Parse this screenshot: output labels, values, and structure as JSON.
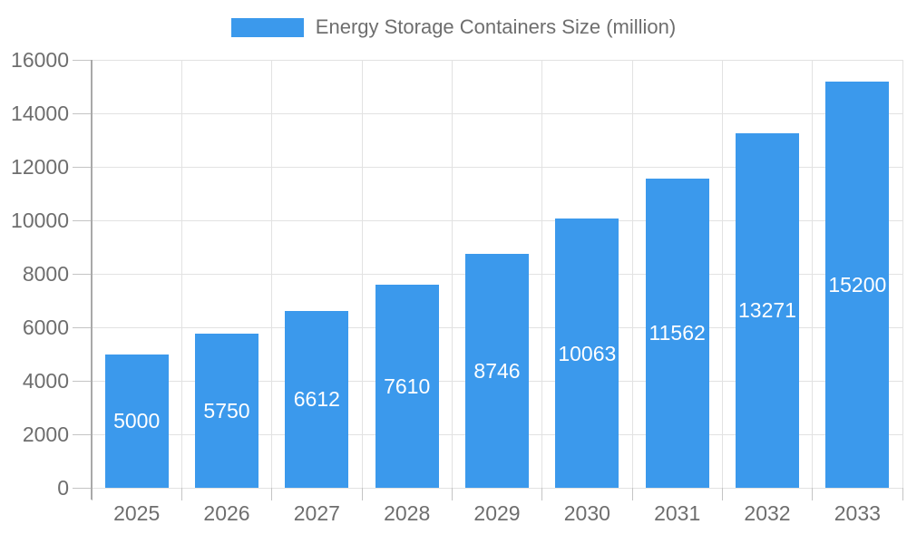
{
  "chart_data": {
    "type": "bar",
    "title": "Energy Storage Containers Size (million)",
    "categories": [
      "2025",
      "2026",
      "2027",
      "2028",
      "2029",
      "2030",
      "2031",
      "2032",
      "2033"
    ],
    "values": [
      5000,
      5750,
      6612,
      7610,
      8746,
      10063,
      11562,
      13271,
      15200
    ],
    "xlabel": "",
    "ylabel": "",
    "ylim": [
      0,
      16000
    ],
    "yticks": [
      0,
      2000,
      4000,
      6000,
      8000,
      10000,
      12000,
      14000,
      16000
    ],
    "grid": true,
    "legend_position": "top-center",
    "bar_labels_inside": true
  },
  "legend": {
    "label": "Energy Storage Containers Size (million)"
  },
  "colors": {
    "bar": "#3B99EC",
    "bar_label": "#ffffff",
    "grid": "#e2e2e2",
    "axis_line": "#a9a9a9",
    "tick": "#c4c4c4",
    "text": "#6e6e6e",
    "background": "#ffffff"
  }
}
